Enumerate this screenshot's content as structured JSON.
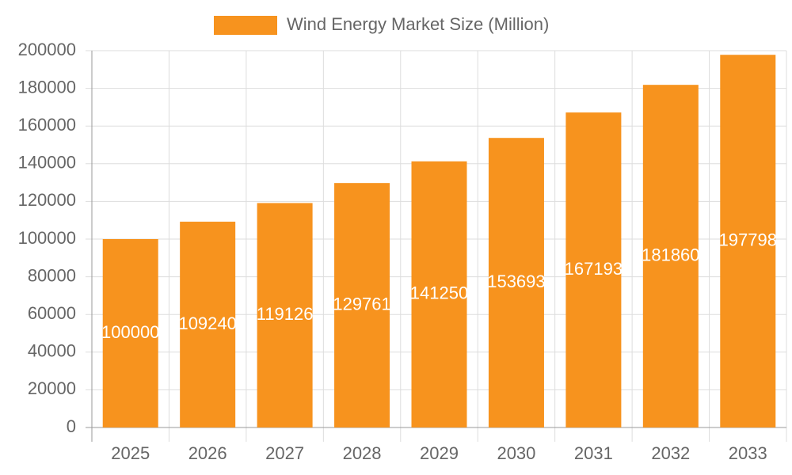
{
  "chart_data": {
    "type": "bar",
    "categories": [
      "2025",
      "2026",
      "2027",
      "2028",
      "2029",
      "2030",
      "2031",
      "2032",
      "2033"
    ],
    "series": [
      {
        "name": "Wind Energy Market Size (Million)",
        "color": "#f7931e",
        "values": [
          100000,
          109240,
          119126,
          129761,
          141250,
          153693,
          167193,
          181860,
          197798
        ]
      }
    ],
    "ylim": [
      0,
      200000
    ],
    "yticks": [
      0,
      20000,
      40000,
      60000,
      80000,
      100000,
      120000,
      140000,
      160000,
      180000,
      200000
    ],
    "grid": true,
    "legend": "top"
  }
}
